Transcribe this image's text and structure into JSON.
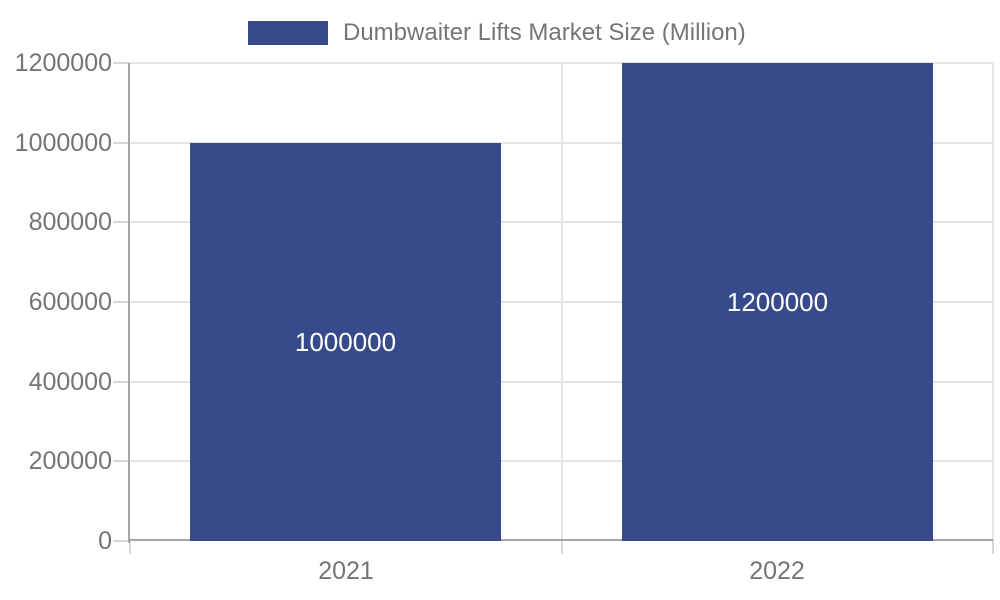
{
  "chart_data": {
    "type": "bar",
    "title": "Dumbwaiter Lifts Market Size (Million)",
    "legend_entries": [
      "Dumbwaiter Lifts Market Size (Million)"
    ],
    "legend_position": "top-center",
    "categories": [
      "2021",
      "2022"
    ],
    "series": [
      {
        "name": "Dumbwaiter Lifts Market Size (Million)",
        "values": [
          1000000,
          1200000
        ]
      }
    ],
    "bar_value_labels": [
      "1000000",
      "1200000"
    ],
    "xlabel": "",
    "ylabel": "",
    "ylim": [
      0,
      1200000
    ],
    "yticks": [
      0,
      200000,
      400000,
      600000,
      800000,
      1000000,
      1200000
    ],
    "ytick_labels": [
      "0",
      "200000",
      "400000",
      "600000",
      "800000",
      "1000000",
      "1200000"
    ],
    "grid": true,
    "colors": {
      "bar": "#374a8b",
      "bar_value_text": "#ffffff",
      "axis_text": "#757575",
      "axis_line": "#a6a6a6",
      "gridline": "#e4e4e4",
      "tick_mark": "#d8d8d8",
      "background": "#ffffff"
    }
  }
}
